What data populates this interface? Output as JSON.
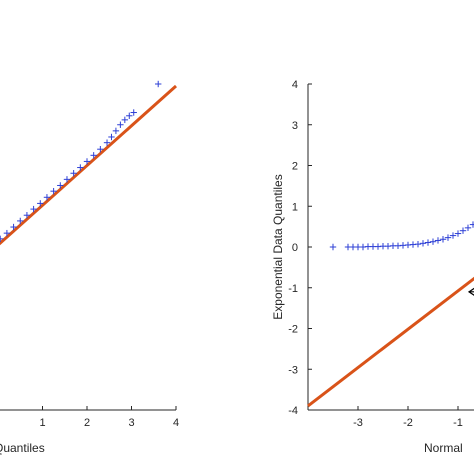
{
  "chart_data": [
    {
      "type": "scatter",
      "title": "",
      "xlabel": "Quantiles",
      "ylabel": "",
      "xlim": [
        0,
        4
      ],
      "ylim": [
        -4,
        4
      ],
      "x_ticks": [
        "1",
        "2",
        "3",
        "4"
      ],
      "y_ticks": [],
      "grid": false,
      "series": [
        {
          "kind": "markers",
          "marker": "plus",
          "color": "#2d3fd6",
          "points": [
            {
              "x": 0.05,
              "y": 0.2
            },
            {
              "x": 0.2,
              "y": 0.34
            },
            {
              "x": 0.35,
              "y": 0.49
            },
            {
              "x": 0.5,
              "y": 0.64
            },
            {
              "x": 0.65,
              "y": 0.78
            },
            {
              "x": 0.8,
              "y": 0.93
            },
            {
              "x": 0.95,
              "y": 1.07
            },
            {
              "x": 1.1,
              "y": 1.22
            },
            {
              "x": 1.25,
              "y": 1.37
            },
            {
              "x": 1.4,
              "y": 1.51
            },
            {
              "x": 1.55,
              "y": 1.66
            },
            {
              "x": 1.7,
              "y": 1.81
            },
            {
              "x": 1.85,
              "y": 1.95
            },
            {
              "x": 2.0,
              "y": 2.1
            },
            {
              "x": 2.15,
              "y": 2.25
            },
            {
              "x": 2.3,
              "y": 2.4
            },
            {
              "x": 2.45,
              "y": 2.56
            },
            {
              "x": 2.55,
              "y": 2.7
            },
            {
              "x": 2.65,
              "y": 2.85
            },
            {
              "x": 2.75,
              "y": 3.0
            },
            {
              "x": 2.85,
              "y": 3.12
            },
            {
              "x": 2.95,
              "y": 3.22
            },
            {
              "x": 3.05,
              "y": 3.3
            },
            {
              "x": 3.6,
              "y": 4.0
            }
          ]
        },
        {
          "kind": "reference-line",
          "color": "#d95319",
          "points": [
            {
              "x": -0.1,
              "y": -0.05
            },
            {
              "x": 4.0,
              "y": 3.95
            }
          ]
        }
      ]
    },
    {
      "type": "scatter",
      "title": "",
      "xlabel": "Normal",
      "ylabel": "Exponential Data Quantiles",
      "xlim": [
        -4,
        -0.6
      ],
      "ylim": [
        -4,
        4
      ],
      "x_ticks": [
        "-3",
        "-2",
        "-1"
      ],
      "y_ticks": [
        "-4",
        "-3",
        "-2",
        "-1",
        "0",
        "1",
        "2",
        "3",
        "4"
      ],
      "grid": false,
      "series": [
        {
          "kind": "markers",
          "marker": "plus",
          "color": "#2d3fd6",
          "points": [
            {
              "x": -3.5,
              "y": 0.0
            },
            {
              "x": -3.2,
              "y": 0.0
            },
            {
              "x": -3.1,
              "y": 0.0
            },
            {
              "x": -3.0,
              "y": 0.0
            },
            {
              "x": -2.9,
              "y": 0.0
            },
            {
              "x": -2.8,
              "y": 0.01
            },
            {
              "x": -2.7,
              "y": 0.01
            },
            {
              "x": -2.6,
              "y": 0.01
            },
            {
              "x": -2.5,
              "y": 0.02
            },
            {
              "x": -2.4,
              "y": 0.02
            },
            {
              "x": -2.3,
              "y": 0.03
            },
            {
              "x": -2.2,
              "y": 0.03
            },
            {
              "x": -2.1,
              "y": 0.04
            },
            {
              "x": -2.0,
              "y": 0.05
            },
            {
              "x": -1.9,
              "y": 0.06
            },
            {
              "x": -1.8,
              "y": 0.07
            },
            {
              "x": -1.7,
              "y": 0.09
            },
            {
              "x": -1.6,
              "y": 0.11
            },
            {
              "x": -1.5,
              "y": 0.13
            },
            {
              "x": -1.4,
              "y": 0.16
            },
            {
              "x": -1.3,
              "y": 0.19
            },
            {
              "x": -1.2,
              "y": 0.23
            },
            {
              "x": -1.1,
              "y": 0.28
            },
            {
              "x": -1.0,
              "y": 0.33
            },
            {
              "x": -0.9,
              "y": 0.4
            },
            {
              "x": -0.8,
              "y": 0.47
            },
            {
              "x": -0.7,
              "y": 0.55
            },
            {
              "x": -0.6,
              "y": 0.6
            }
          ]
        },
        {
          "kind": "reference-line",
          "color": "#d95319",
          "points": [
            {
              "x": -4.0,
              "y": -3.9
            },
            {
              "x": -0.6,
              "y": -0.7
            }
          ]
        }
      ],
      "annotation": {
        "kind": "arrow",
        "x": -0.6,
        "y": -1.1
      }
    }
  ]
}
